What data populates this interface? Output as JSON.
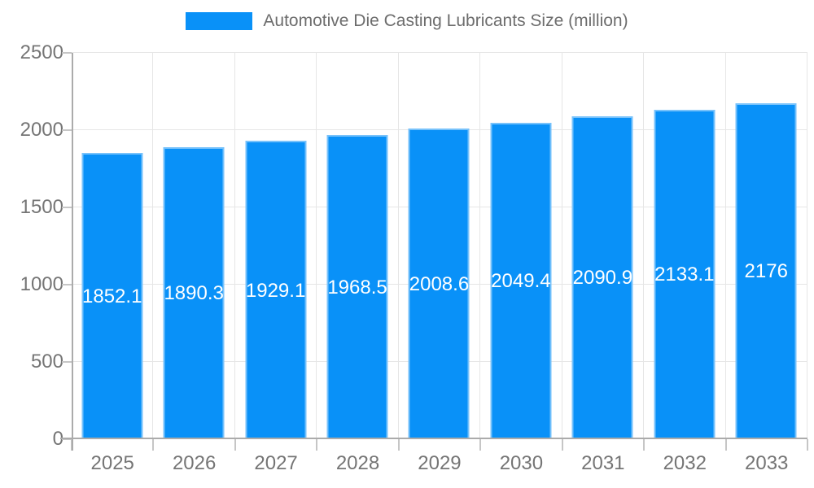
{
  "chart_data": {
    "type": "bar",
    "title": "Automotive Die Casting Lubricants Size (million)",
    "categories": [
      "2025",
      "2026",
      "2027",
      "2028",
      "2029",
      "2030",
      "2031",
      "2032",
      "2033"
    ],
    "values": [
      1852.1,
      1890.3,
      1929.1,
      1968.5,
      2008.6,
      2049.4,
      2090.9,
      2133.1,
      2176
    ],
    "value_labels": [
      "1852.1",
      "1890.3",
      "1929.1",
      "1968.5",
      "2008.6",
      "2049.4",
      "2090.9",
      "2133.1",
      "2176"
    ],
    "xlabel": "",
    "ylabel": "",
    "ylim": [
      0,
      2500
    ],
    "yticks": [
      0,
      500,
      1000,
      1500,
      2000,
      2500
    ],
    "grid": true,
    "legend_position": "top",
    "colors": {
      "bar": "#0991f8",
      "grid": "#e6e6e6",
      "axis": "#ababab",
      "tick": "#c6c6c6",
      "tick_text": "#757575",
      "legend_text": "#6d6d6d",
      "value_label": "#ffffff",
      "background": "#ffffff"
    }
  }
}
